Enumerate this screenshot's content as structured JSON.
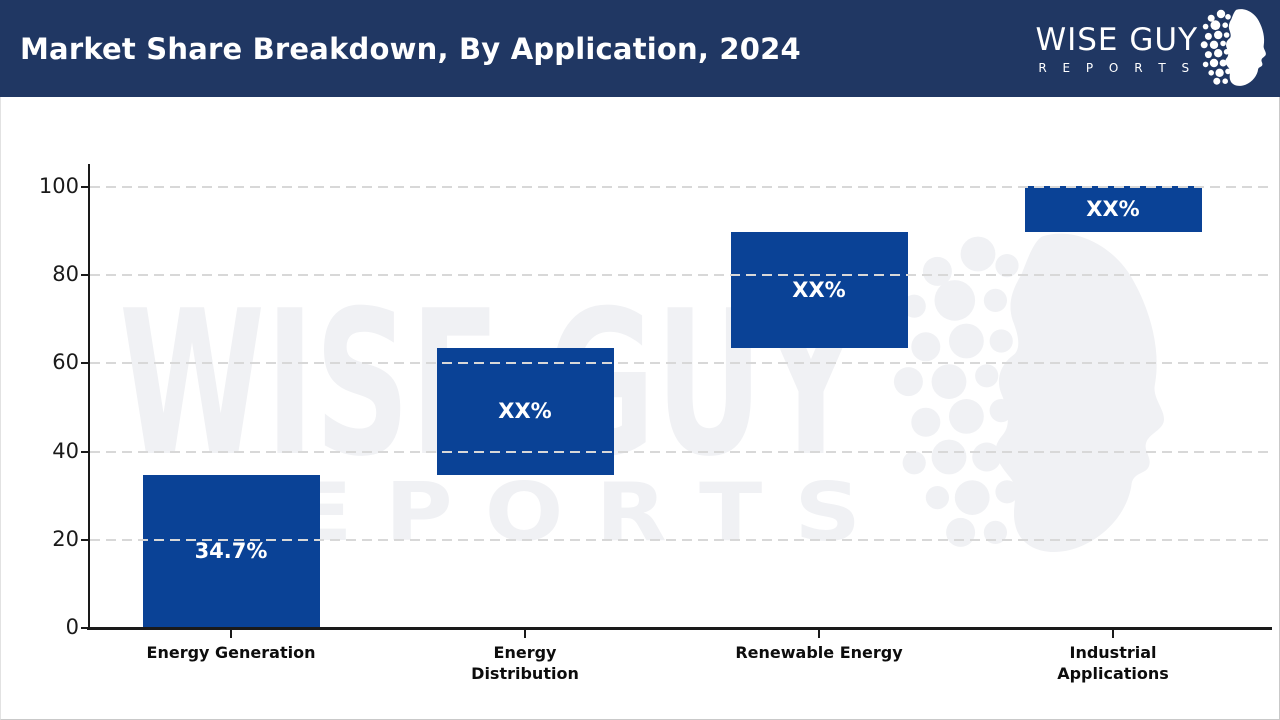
{
  "header": {
    "title": "Market Share Breakdown, By Application, 2024",
    "bg_color": "#203763",
    "logo": {
      "line1": "WISE GUY",
      "line2": "R E P O R T S"
    }
  },
  "watermark": {
    "line1": "WISE GUY",
    "line2": "R E P O R T S"
  },
  "chart_data": {
    "type": "bar",
    "subtype": "floating-waterfall",
    "title": "Market Share Breakdown, By Application, 2024",
    "categories": [
      "Energy Generation",
      "Energy\nDistribution",
      "Renewable Energy",
      "Industrial\nApplications"
    ],
    "segments": [
      {
        "from": 0,
        "to": 34.7,
        "label": "34.7%"
      },
      {
        "from": 34.7,
        "to": 63.6,
        "label": "XX%"
      },
      {
        "from": 63.6,
        "to": 89.8,
        "label": "XX%"
      },
      {
        "from": 89.8,
        "to": 100.3,
        "label": "XX%"
      }
    ],
    "yticks": [
      0,
      20,
      40,
      60,
      80,
      100
    ],
    "ylim": [
      0,
      105
    ],
    "grid": "horizontal-dashed",
    "bar_color": "#0A4296",
    "bar_label_color": "#FFFFFF",
    "gridline_color": "#D8D8D8",
    "axis_color": "#1A1A1A"
  }
}
